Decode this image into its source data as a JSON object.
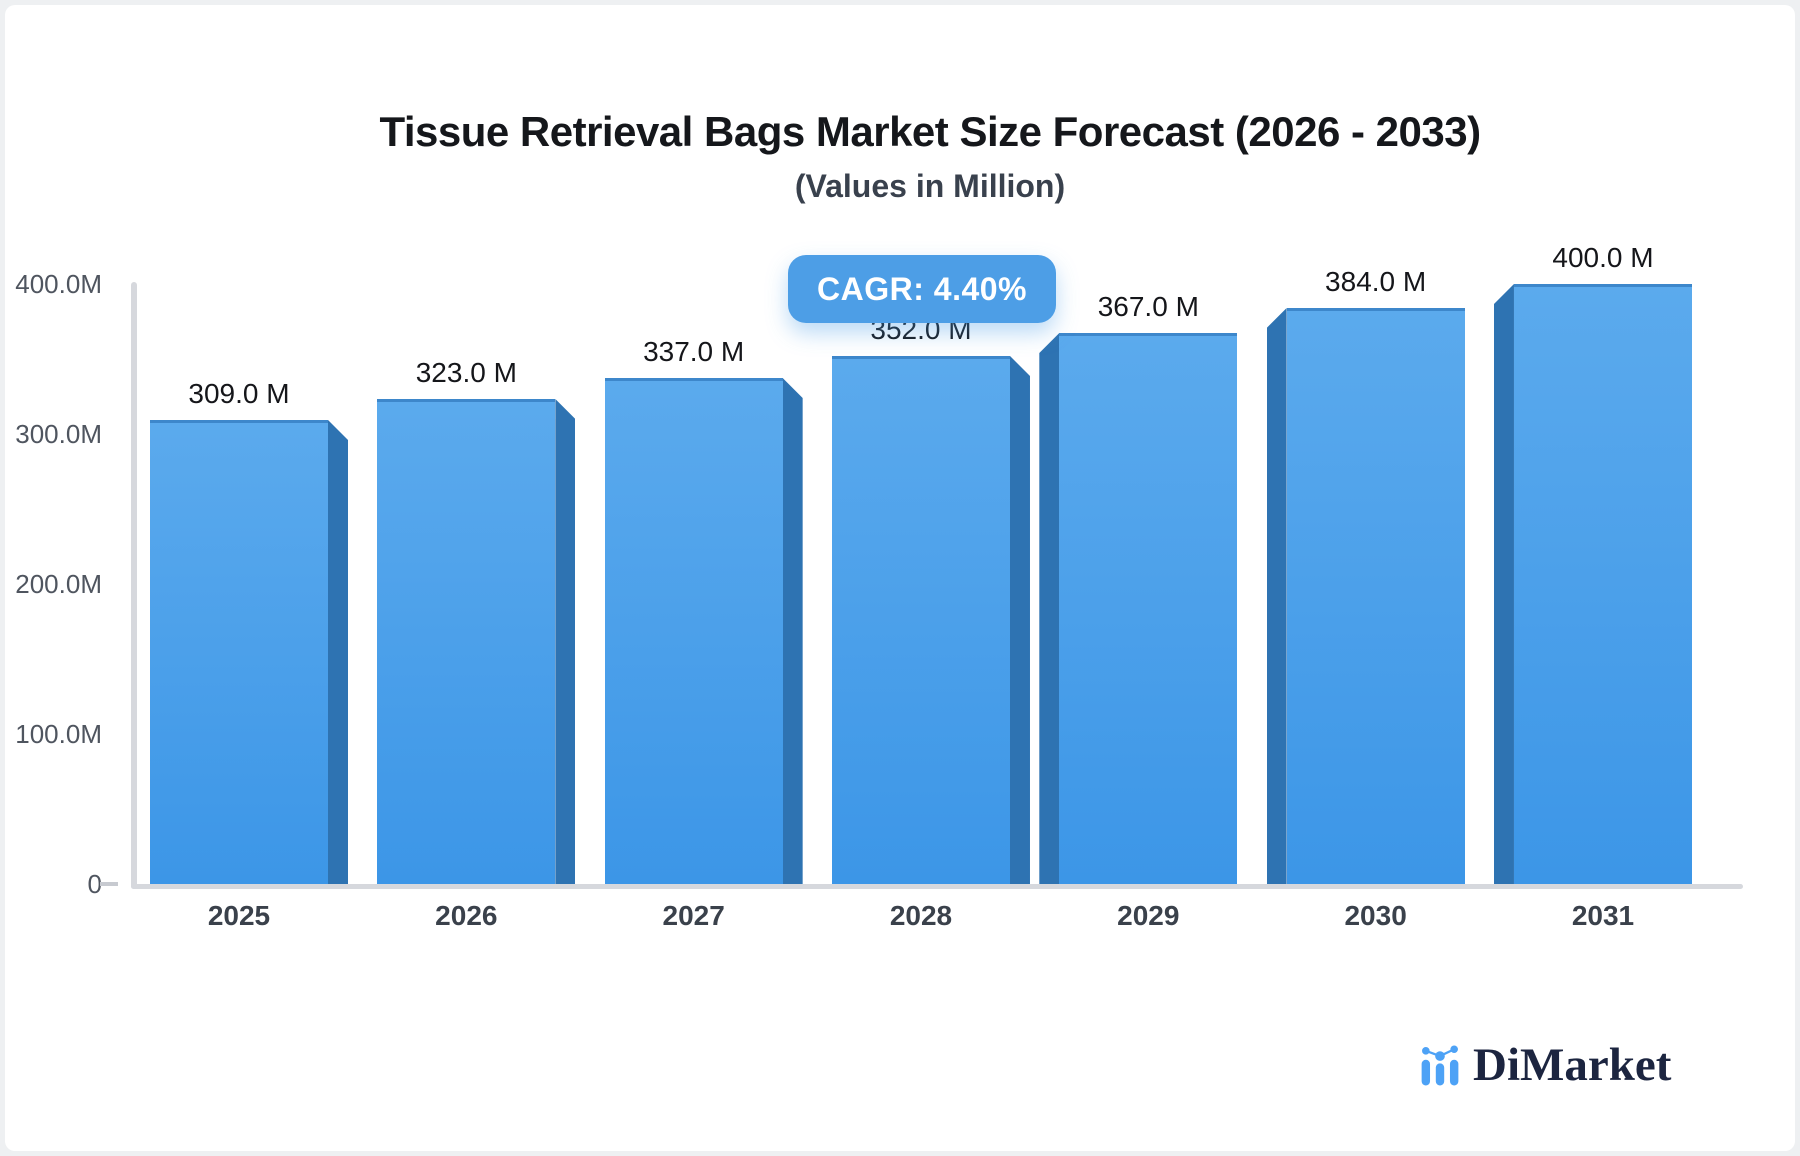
{
  "page": {
    "title": "Tissue Retrieval Bags Market Size Forecast (2026 - 2033)",
    "subtitle": "(Values in Million)",
    "cagr_badge": "CAGR: 4.40%",
    "logo_text": "DiMarket"
  },
  "colors": {
    "bar_face_top": "#5BAAED",
    "bar_face_bottom": "#3C96E7",
    "bar_face_edge": "#3D87CB",
    "bar_side": "#2E73B2",
    "badge_bg": "#4D9EE6",
    "axis_line": "#D6D8DD",
    "value_label_text": "#15161A",
    "x_label_text": "#3A414B",
    "y_label_text": "#4F555F",
    "logo_blue": "#4DA2F6",
    "logo_navy": "#1C2540"
  },
  "chart_data": {
    "type": "bar",
    "title": "Tissue Retrieval Bags Market Size Forecast (2026 - 2033)",
    "subtitle": "(Values in Million)",
    "categories": [
      "2025",
      "2026",
      "2027",
      "2028",
      "2029",
      "2030",
      "2031"
    ],
    "values": [
      309.0,
      323.0,
      337.0,
      352.0,
      367.0,
      384.0,
      400.0
    ],
    "value_labels": [
      "309.0 M",
      "323.0 M",
      "337.0 M",
      "352.0 M",
      "367.0 M",
      "384.0 M",
      "400.0 M"
    ],
    "unit": "M",
    "xlabel": "",
    "ylabel": "",
    "ylim": [
      0,
      400
    ],
    "ytick_values": [
      400,
      300,
      200,
      100,
      0
    ],
    "ytick_labels": [
      "400.0M",
      "300.0M",
      "200.0M",
      "100.0M",
      "0"
    ],
    "annotation": "CAGR: 4.40%",
    "legend": null,
    "grid": false,
    "bar_style": "3d-bevel"
  }
}
